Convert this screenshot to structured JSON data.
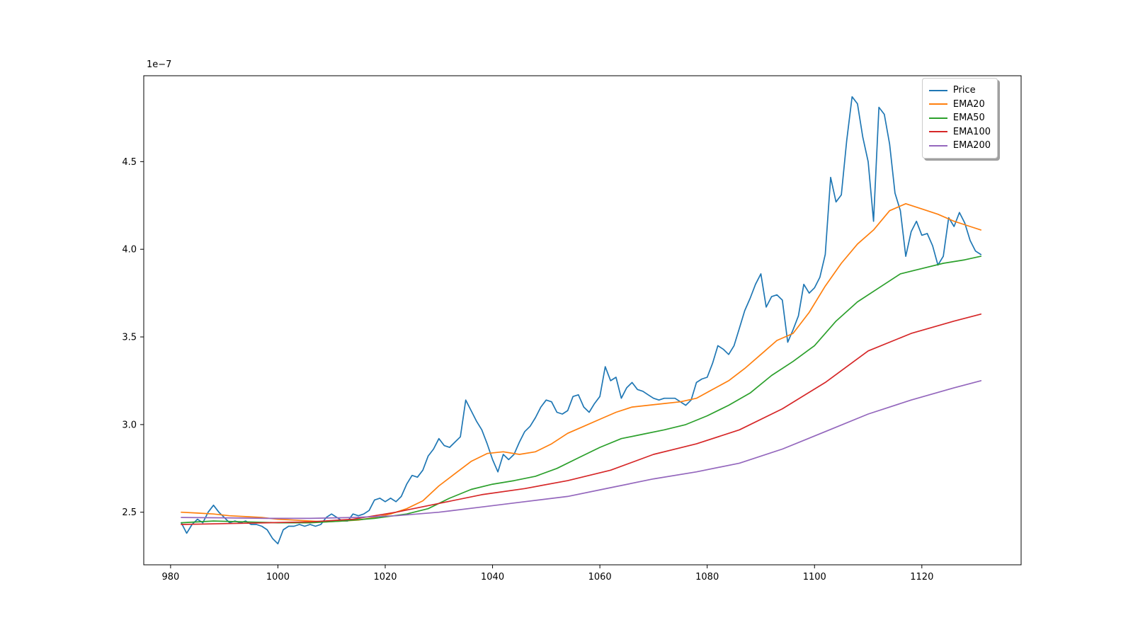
{
  "figure": {
    "background": "#ffffff",
    "axis_color": "#000000"
  },
  "chart_data": {
    "type": "line",
    "title": "",
    "xlabel": "",
    "ylabel": "",
    "y_offset_text": "1e−7",
    "xlim": [
      975,
      1138.5
    ],
    "ylim": [
      2.2,
      4.99
    ],
    "x_ticks": [
      980,
      1000,
      1020,
      1040,
      1060,
      1080,
      1100,
      1120
    ],
    "y_ticks": [
      2.5,
      3.0,
      3.5,
      4.0,
      4.5
    ],
    "grid": false,
    "legend": {
      "location": "upper right"
    },
    "series": [
      {
        "name": "Price",
        "color": "#1f77b4",
        "x_start": 982,
        "x_step": 1,
        "y": [
          2.44,
          2.38,
          2.43,
          2.46,
          2.44,
          2.5,
          2.54,
          2.5,
          2.47,
          2.44,
          2.45,
          2.44,
          2.45,
          2.43,
          2.43,
          2.42,
          2.4,
          2.35,
          2.32,
          2.4,
          2.42,
          2.42,
          2.43,
          2.42,
          2.43,
          2.42,
          2.43,
          2.47,
          2.49,
          2.47,
          2.45,
          2.45,
          2.49,
          2.48,
          2.49,
          2.51,
          2.57,
          2.58,
          2.56,
          2.58,
          2.56,
          2.59,
          2.66,
          2.71,
          2.7,
          2.74,
          2.82,
          2.86,
          2.92,
          2.88,
          2.87,
          2.9,
          2.93,
          3.14,
          3.08,
          3.02,
          2.97,
          2.89,
          2.8,
          2.73,
          2.83,
          2.8,
          2.83,
          2.9,
          2.96,
          2.99,
          3.04,
          3.1,
          3.14,
          3.13,
          3.07,
          3.06,
          3.08,
          3.16,
          3.17,
          3.1,
          3.07,
          3.12,
          3.16,
          3.33,
          3.25,
          3.27,
          3.15,
          3.21,
          3.24,
          3.2,
          3.19,
          3.17,
          3.15,
          3.14,
          3.15,
          3.15,
          3.15,
          3.13,
          3.11,
          3.14,
          3.24,
          3.26,
          3.27,
          3.35,
          3.45,
          3.43,
          3.4,
          3.45,
          3.55,
          3.65,
          3.72,
          3.8,
          3.86,
          3.67,
          3.73,
          3.74,
          3.71,
          3.47,
          3.54,
          3.62,
          3.8,
          3.75,
          3.78,
          3.84,
          3.97,
          4.41,
          4.27,
          4.31,
          4.62,
          4.87,
          4.83,
          4.64,
          4.5,
          4.16,
          4.81,
          4.77,
          4.6,
          4.32,
          4.22,
          3.96,
          4.1,
          4.16,
          4.08,
          4.09,
          4.02,
          3.91,
          3.96,
          4.18,
          4.13,
          4.21,
          4.15,
          4.05,
          3.99,
          3.97
        ]
      },
      {
        "name": "EMA20",
        "color": "#ff7f0e",
        "x": [
          982,
          985,
          988,
          991,
          994,
          997,
          1000,
          1003,
          1006,
          1009,
          1012,
          1015,
          1018,
          1021,
          1024,
          1027,
          1030,
          1033,
          1036,
          1039,
          1042,
          1045,
          1048,
          1051,
          1054,
          1057,
          1060,
          1063,
          1066,
          1069,
          1072,
          1075,
          1078,
          1081,
          1084,
          1087,
          1090,
          1093,
          1096,
          1099,
          1102,
          1105,
          1108,
          1111,
          1114,
          1117,
          1120,
          1123,
          1126,
          1129,
          1131
        ],
        "y": [
          2.5,
          2.495,
          2.49,
          2.48,
          2.475,
          2.47,
          2.46,
          2.455,
          2.45,
          2.445,
          2.45,
          2.455,
          2.47,
          2.49,
          2.52,
          2.565,
          2.65,
          2.72,
          2.79,
          2.835,
          2.845,
          2.83,
          2.845,
          2.89,
          2.95,
          2.99,
          3.03,
          3.07,
          3.1,
          3.11,
          3.12,
          3.13,
          3.15,
          3.2,
          3.25,
          3.32,
          3.4,
          3.48,
          3.52,
          3.64,
          3.79,
          3.92,
          4.03,
          4.11,
          4.22,
          4.26,
          4.23,
          4.2,
          4.16,
          4.13,
          4.11
        ]
      },
      {
        "name": "EMA50",
        "color": "#2ca02c",
        "x": [
          982,
          988,
          994,
          1000,
          1006,
          1012,
          1018,
          1024,
          1028,
          1032,
          1036,
          1040,
          1044,
          1048,
          1052,
          1056,
          1060,
          1064,
          1068,
          1072,
          1076,
          1080,
          1084,
          1088,
          1092,
          1096,
          1100,
          1104,
          1108,
          1112,
          1116,
          1120,
          1124,
          1128,
          1131
        ],
        "y": [
          2.44,
          2.45,
          2.445,
          2.44,
          2.44,
          2.45,
          2.465,
          2.49,
          2.52,
          2.58,
          2.63,
          2.66,
          2.68,
          2.705,
          2.75,
          2.81,
          2.87,
          2.92,
          2.945,
          2.97,
          3.0,
          3.05,
          3.11,
          3.18,
          3.28,
          3.36,
          3.45,
          3.59,
          3.7,
          3.78,
          3.86,
          3.89,
          3.92,
          3.94,
          3.96
        ]
      },
      {
        "name": "EMA100",
        "color": "#d62728",
        "x": [
          982,
          990,
          998,
          1006,
          1014,
          1022,
          1030,
          1038,
          1046,
          1054,
          1062,
          1070,
          1078,
          1086,
          1094,
          1102,
          1110,
          1118,
          1126,
          1131
        ],
        "y": [
          2.43,
          2.435,
          2.44,
          2.445,
          2.46,
          2.5,
          2.55,
          2.6,
          2.635,
          2.68,
          2.74,
          2.83,
          2.89,
          2.97,
          3.09,
          3.24,
          3.42,
          3.52,
          3.59,
          3.63
        ]
      },
      {
        "name": "EMA200",
        "color": "#9467bd",
        "x": [
          982,
          990,
          998,
          1006,
          1014,
          1022,
          1030,
          1038,
          1046,
          1054,
          1062,
          1070,
          1078,
          1086,
          1094,
          1102,
          1110,
          1118,
          1126,
          1131
        ],
        "y": [
          2.47,
          2.468,
          2.465,
          2.465,
          2.47,
          2.48,
          2.5,
          2.53,
          2.56,
          2.59,
          2.64,
          2.69,
          2.73,
          2.78,
          2.86,
          2.96,
          3.06,
          3.14,
          3.21,
          3.25
        ]
      }
    ]
  }
}
